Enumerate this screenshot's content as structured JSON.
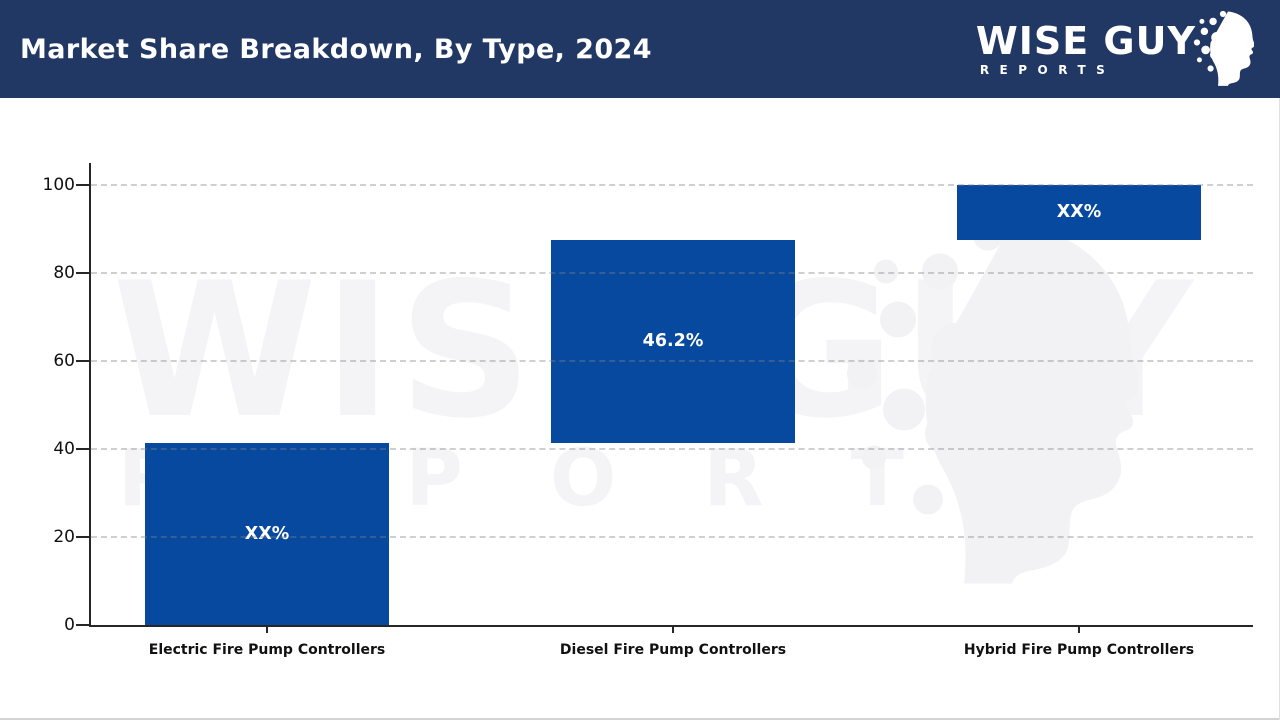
{
  "header": {
    "title": "Market Share Breakdown, By Type, 2024",
    "logo": {
      "line1": "WISE GUY",
      "line2": "REPORTS"
    }
  },
  "watermark": {
    "line1": "WISE GUY",
    "line2": "R E P O R T S"
  },
  "colors": {
    "header_bg": "#223864",
    "bar": "#0849A0",
    "axis": "#262626",
    "grid": "rgba(128,128,128,0.38)",
    "bar_label_text": "#ffffff",
    "watermark": "#f4f4f6"
  },
  "chart_data": {
    "type": "bar",
    "subtype": "stacked-waterfall",
    "title": "Market Share Breakdown, By Type, 2024",
    "categories": [
      "Electric Fire Pump Controllers",
      "Diesel Fire Pump Controllers",
      "Hybrid Fire Pump Controllers"
    ],
    "segments": [
      {
        "category": "Electric Fire Pump Controllers",
        "start": 0,
        "end": 41.4,
        "label": "XX%"
      },
      {
        "category": "Diesel Fire Pump Controllers",
        "start": 41.4,
        "end": 87.6,
        "label": "46.2%"
      },
      {
        "category": "Hybrid Fire Pump Controllers",
        "start": 87.6,
        "end": 100,
        "label": "XX%"
      }
    ],
    "ylim": [
      0,
      100
    ],
    "yticks": [
      0,
      20,
      40,
      60,
      80,
      100
    ],
    "xlabel": "",
    "ylabel": "",
    "grid": "horizontal-dashed",
    "legend": "none"
  }
}
